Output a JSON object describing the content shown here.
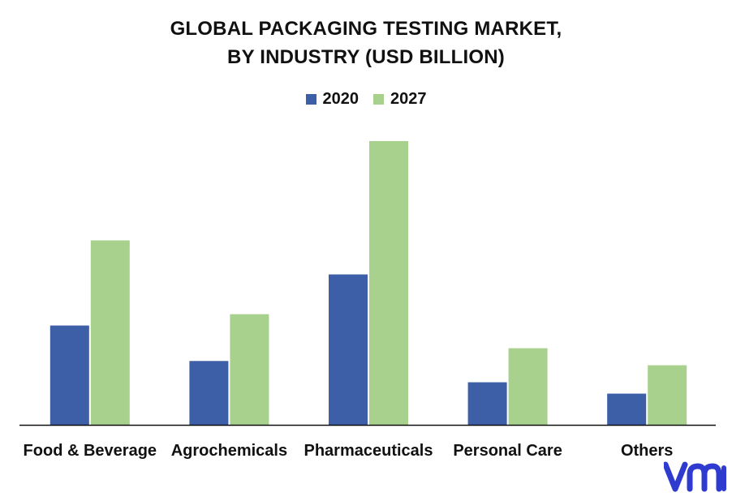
{
  "title_line1": "GLOBAL PACKAGING TESTING MARKET,",
  "title_line2": "BY INDUSTRY (USD BILLION)",
  "chart_data": {
    "type": "bar",
    "title": "GLOBAL PACKAGING TESTING MARKET, BY INDUSTRY (USD BILLION)",
    "categories": [
      "Food & Beverage",
      "Agrochemicals",
      "Pharmaceuticals",
      "Personal Care",
      "Others"
    ],
    "series": [
      {
        "name": "2020",
        "color": "#3C5FA8",
        "values": [
          3.5,
          2.25,
          5.3,
          1.5,
          1.1
        ]
      },
      {
        "name": "2027",
        "color": "#A9D18E",
        "values": [
          6.5,
          3.9,
          10.0,
          2.7,
          2.1
        ]
      }
    ],
    "xlabel": "",
    "ylabel": "",
    "ylim": [
      0,
      10.0
    ],
    "grid": false,
    "legend_position": "top-center"
  },
  "logo": {
    "icon": "vmr-logo",
    "color": "#2F3BCF"
  }
}
